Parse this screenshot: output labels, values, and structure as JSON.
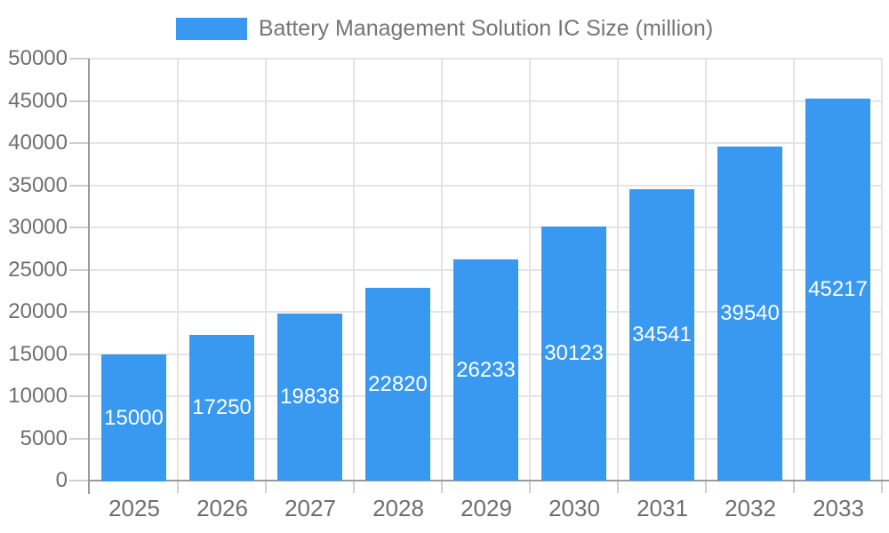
{
  "legend": {
    "label": "Battery Management Solution IC Size (million)"
  },
  "colors": {
    "bar": "#3999f0",
    "grid": "#e4e4e4",
    "tick": "#cfcfcf",
    "axis": "#9a9a9a",
    "axis_label_text": "#6f6f6f",
    "legend_text": "#757575",
    "bar_label_text": "#ffffff",
    "background": "#ffffff"
  },
  "chart_data": {
    "type": "bar",
    "title": "Battery Management Solution IC Size (million)",
    "categories": [
      "2025",
      "2026",
      "2027",
      "2028",
      "2029",
      "2030",
      "2031",
      "2032",
      "2033"
    ],
    "values": [
      15000,
      17250,
      19838,
      22820,
      26233,
      30123,
      34541,
      39540,
      45217
    ],
    "xlabel": "",
    "ylabel": "",
    "ylim": [
      0,
      50000
    ],
    "ytick_step": 5000,
    "yticks": [
      0,
      5000,
      10000,
      15000,
      20000,
      25000,
      30000,
      35000,
      40000,
      45000,
      50000
    ],
    "grid": true,
    "legend_position": "top",
    "bar_labels_shown": true,
    "bar_label_position": "center"
  }
}
